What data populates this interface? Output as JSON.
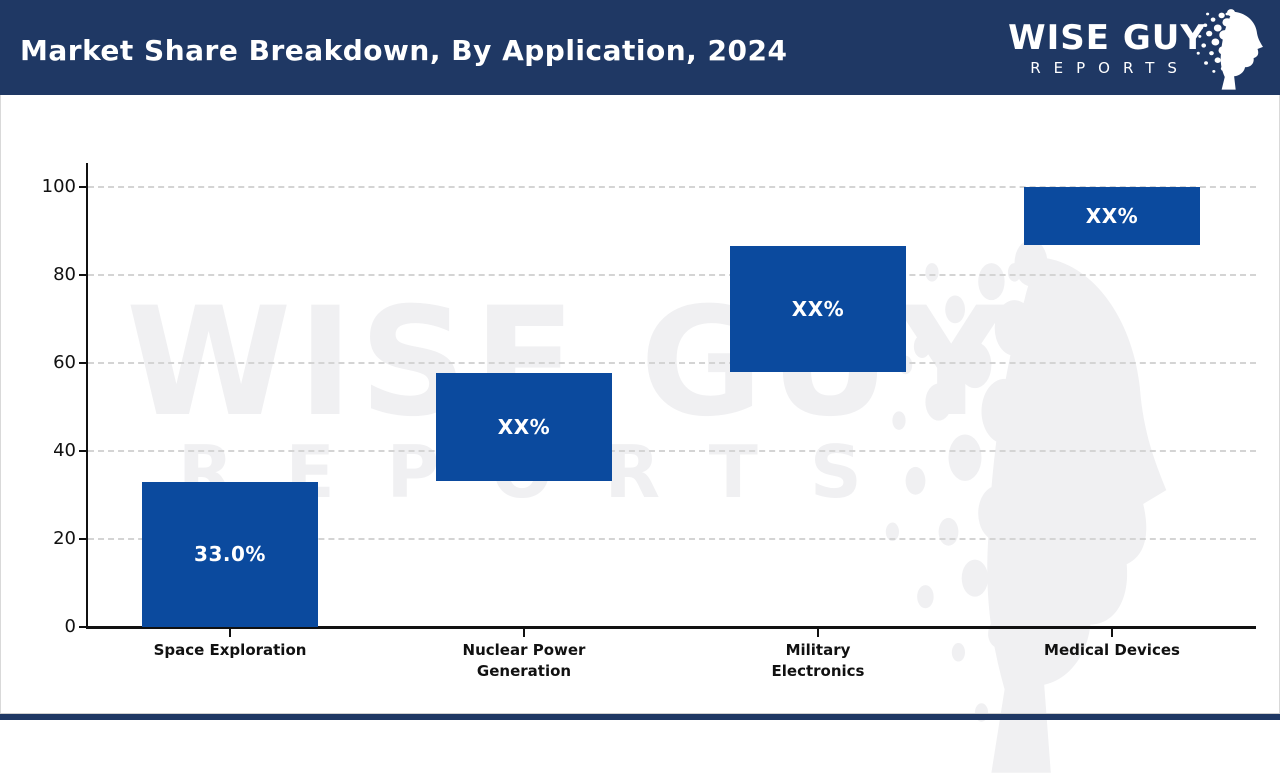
{
  "header": {
    "title": "Market Share Breakdown, By Application, 2024",
    "logo_line1": "WISE GUY",
    "logo_line2": "REPORTS"
  },
  "watermark": {
    "line1": "WISE GUY",
    "line2": "REPORTS"
  },
  "chart_data": {
    "type": "bar",
    "variant": "waterfall",
    "title": "Market Share Breakdown, By Application, 2024",
    "categories": [
      "Space Exploration",
      "Nuclear Power Generation",
      "Military Electronics",
      "Medical Devices"
    ],
    "category_lines": [
      [
        "Space Exploration"
      ],
      [
        "Nuclear Power",
        "Generation"
      ],
      [
        "Military",
        "Electronics"
      ],
      [
        "Medical Devices"
      ]
    ],
    "bars": [
      {
        "category": "Space Exploration",
        "start": 0,
        "end": 33.0,
        "label": "33.0%"
      },
      {
        "category": "Nuclear Power Generation",
        "start": 33.2,
        "end": 57.7,
        "label": "XX%"
      },
      {
        "category": "Military Electronics",
        "start": 57.9,
        "end": 86.6,
        "label": "XX%"
      },
      {
        "category": "Medical Devices",
        "start": 86.8,
        "end": 100.0,
        "label": "XX%"
      }
    ],
    "xlabel": "",
    "ylabel": "",
    "ylim": [
      0,
      100
    ],
    "yticks": [
      0,
      20,
      40,
      60,
      80,
      100
    ],
    "grid": "horizontal-dashed",
    "legend": "none",
    "bar_color": "#0b4a9e",
    "bar_label_color": "#ffffff"
  },
  "colors": {
    "header_bg": "#1f3864",
    "footer_bg": "#1f3864",
    "page_bg": "#ffffff",
    "axis": "#111111",
    "gridline": "#d4d4d4",
    "watermark": "#f0f0f2"
  }
}
